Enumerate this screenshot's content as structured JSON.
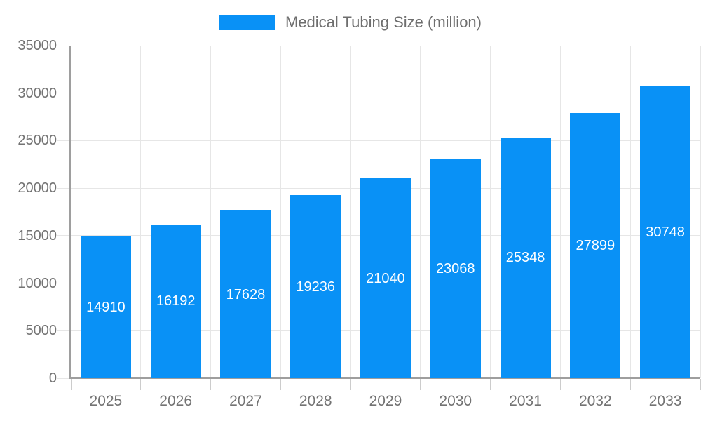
{
  "legend": {
    "series_label": "Medical Tubing Size (million)"
  },
  "colors": {
    "bar": "#0991f6",
    "grid": "#e6e6e6",
    "axis_line": "#9e9e9e",
    "bottom_tick": "#cccccc",
    "axis_text": "#737373",
    "legend_text": "#6e6e6e",
    "bar_label_text": "#ffffff",
    "background": "#ffffff"
  },
  "chart_data": {
    "type": "bar",
    "title": "Medical Tubing Size (million)",
    "categories": [
      "2025",
      "2026",
      "2027",
      "2028",
      "2029",
      "2030",
      "2031",
      "2032",
      "2033"
    ],
    "values": [
      14910,
      16192,
      17628,
      19236,
      21040,
      23068,
      25348,
      27899,
      30748
    ],
    "series": [
      {
        "name": "Medical Tubing Size (million)",
        "values": [
          14910,
          16192,
          17628,
          19236,
          21040,
          23068,
          25348,
          27899,
          30748
        ]
      }
    ],
    "xlabel": "",
    "ylabel": "",
    "ylim": [
      0,
      35000
    ],
    "ytick_step": 5000,
    "yticks": [
      0,
      5000,
      10000,
      15000,
      20000,
      25000,
      30000,
      35000
    ],
    "grid": true,
    "legend_position": "top-center",
    "value_labels": "inside-middle-white"
  }
}
